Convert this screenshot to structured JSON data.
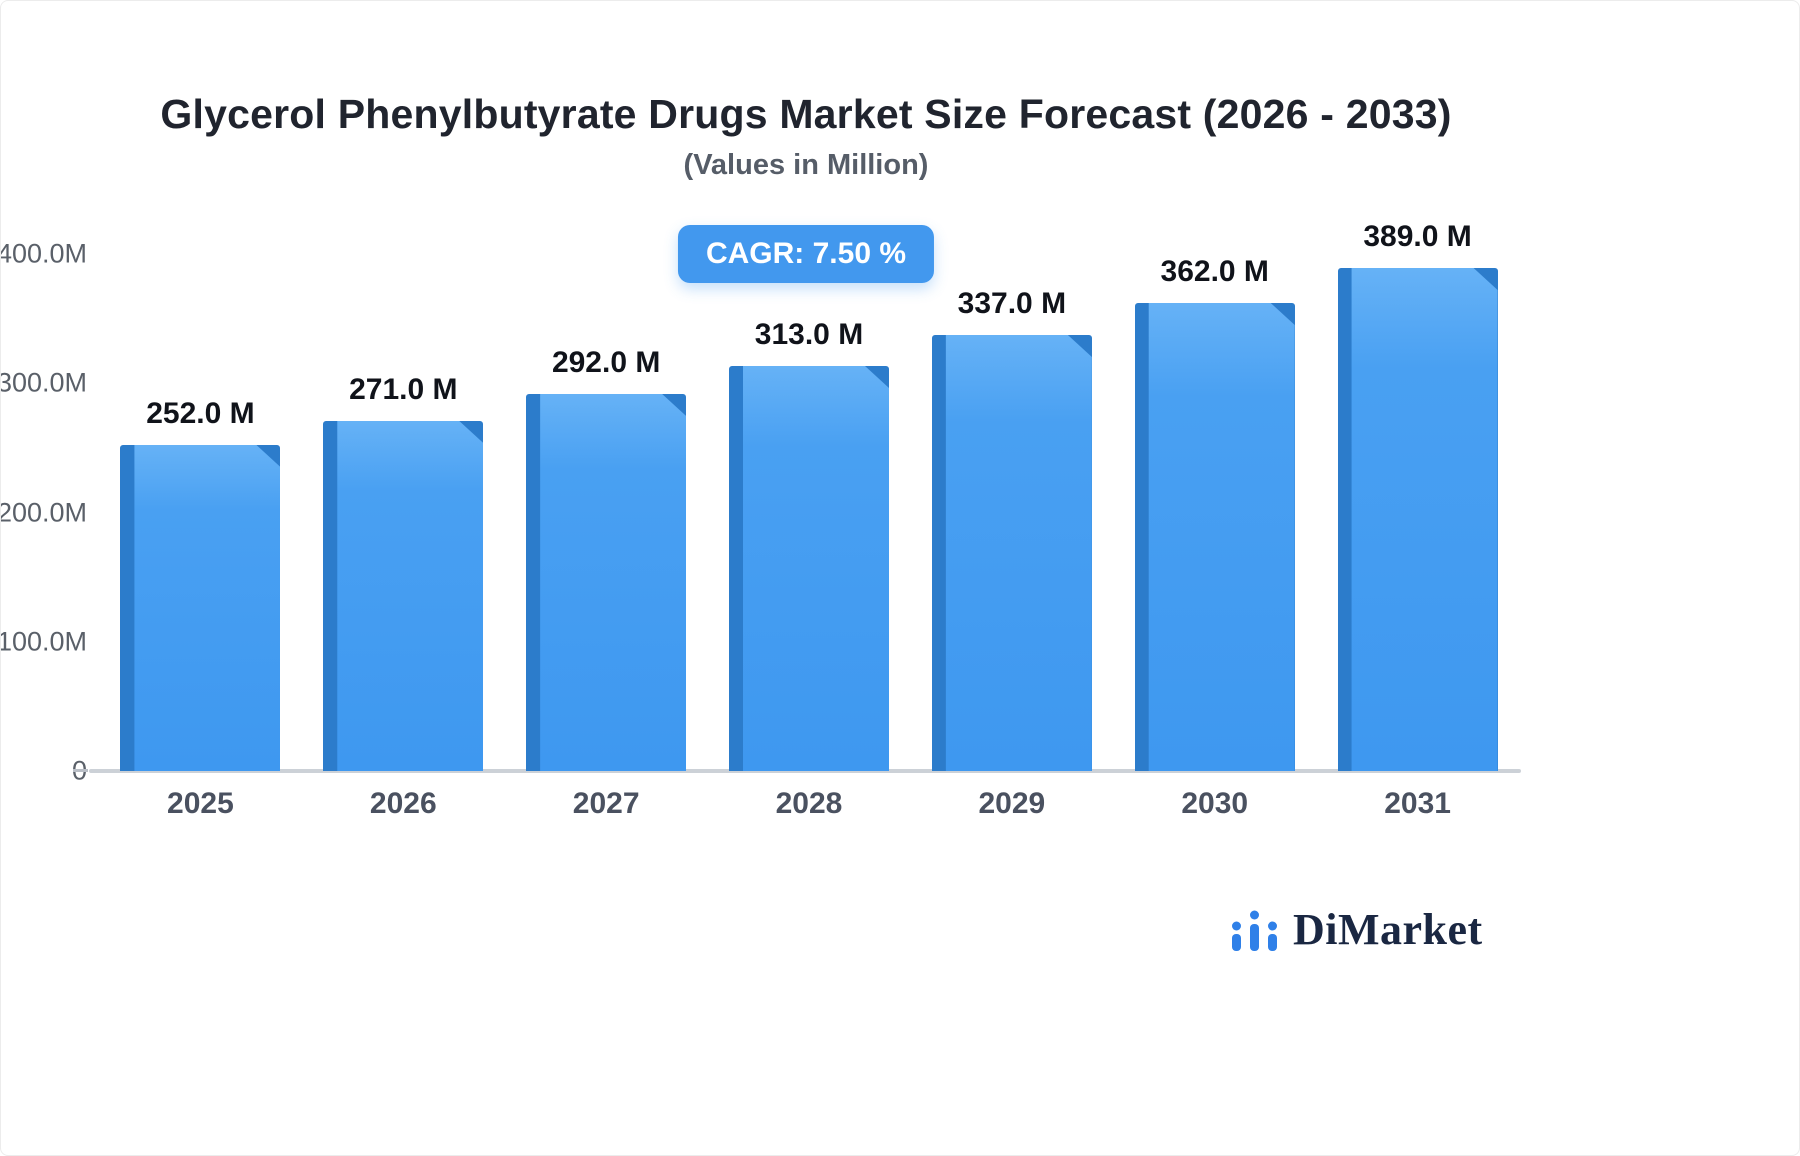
{
  "header": {
    "title": "Glycerol Phenylbutyrate Drugs Market Size Forecast (2026 - 2033)",
    "subtitle": "(Values in Million)"
  },
  "badge": {
    "label": "CAGR: 7.50 %"
  },
  "chart_data": {
    "type": "bar",
    "title": "Glycerol Phenylbutyrate Drugs Market Size Forecast (2026 - 2033)",
    "subtitle": "(Values in Million)",
    "categories": [
      "2025",
      "2026",
      "2027",
      "2028",
      "2029",
      "2030",
      "2031"
    ],
    "values": [
      252,
      271,
      292,
      313,
      337,
      362,
      389
    ],
    "value_labels": [
      "252.0 M",
      "271.0 M",
      "292.0 M",
      "313.0 M",
      "337.0 M",
      "362.0 M",
      "389.0 M"
    ],
    "cagr": "7.50 %",
    "ylim": [
      0,
      400
    ],
    "yticks": [
      {
        "value": 400,
        "label": "400.0M"
      },
      {
        "value": 300,
        "label": "300.0M"
      },
      {
        "value": 200,
        "label": "200.0M"
      },
      {
        "value": 100,
        "label": "100.0M"
      },
      {
        "value": 0,
        "label": "0"
      }
    ],
    "grid": false,
    "legend": "none"
  },
  "logo": {
    "text": "DiMarket",
    "icon": "bar-chart-logo-icon"
  },
  "colors": {
    "bar_main": "#3E98F0",
    "bar_light": "#66B2F6",
    "bar_dark": "#2C7CCB",
    "badge_bg": "#4298EE",
    "title_text": "#20242E",
    "logo_text": "#1A2742"
  }
}
